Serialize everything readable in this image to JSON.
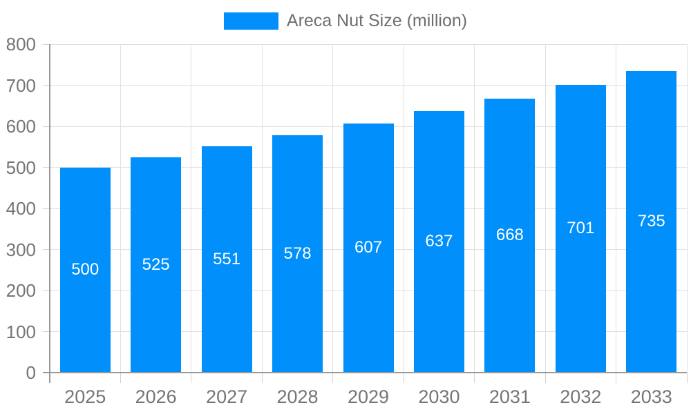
{
  "chart_data": {
    "type": "bar",
    "title": "",
    "categories": [
      "2025",
      "2026",
      "2027",
      "2028",
      "2029",
      "2030",
      "2031",
      "2032",
      "2033"
    ],
    "series": [
      {
        "name": "Areca Nut Size (million)",
        "values": [
          500,
          525,
          551,
          578,
          607,
          637,
          668,
          701,
          735
        ]
      }
    ],
    "xlabel": "",
    "ylabel": "",
    "ylim": [
      0,
      800
    ],
    "ytick_step": 100,
    "yticks": [
      0,
      100,
      200,
      300,
      400,
      500,
      600,
      700,
      800
    ],
    "grid": "both",
    "legend_position": "top-center",
    "value_label_position": "inside-center",
    "colors": {
      "bar": "#008ffb",
      "bar_value_label": "#ffffff",
      "axis_tick_label": "#757575",
      "legend_text": "#6e6e6e",
      "gridline": "#e0e0e0",
      "tick": "#d2d2d2",
      "axis_line": "#9a9a9a",
      "background": "#ffffff"
    }
  }
}
